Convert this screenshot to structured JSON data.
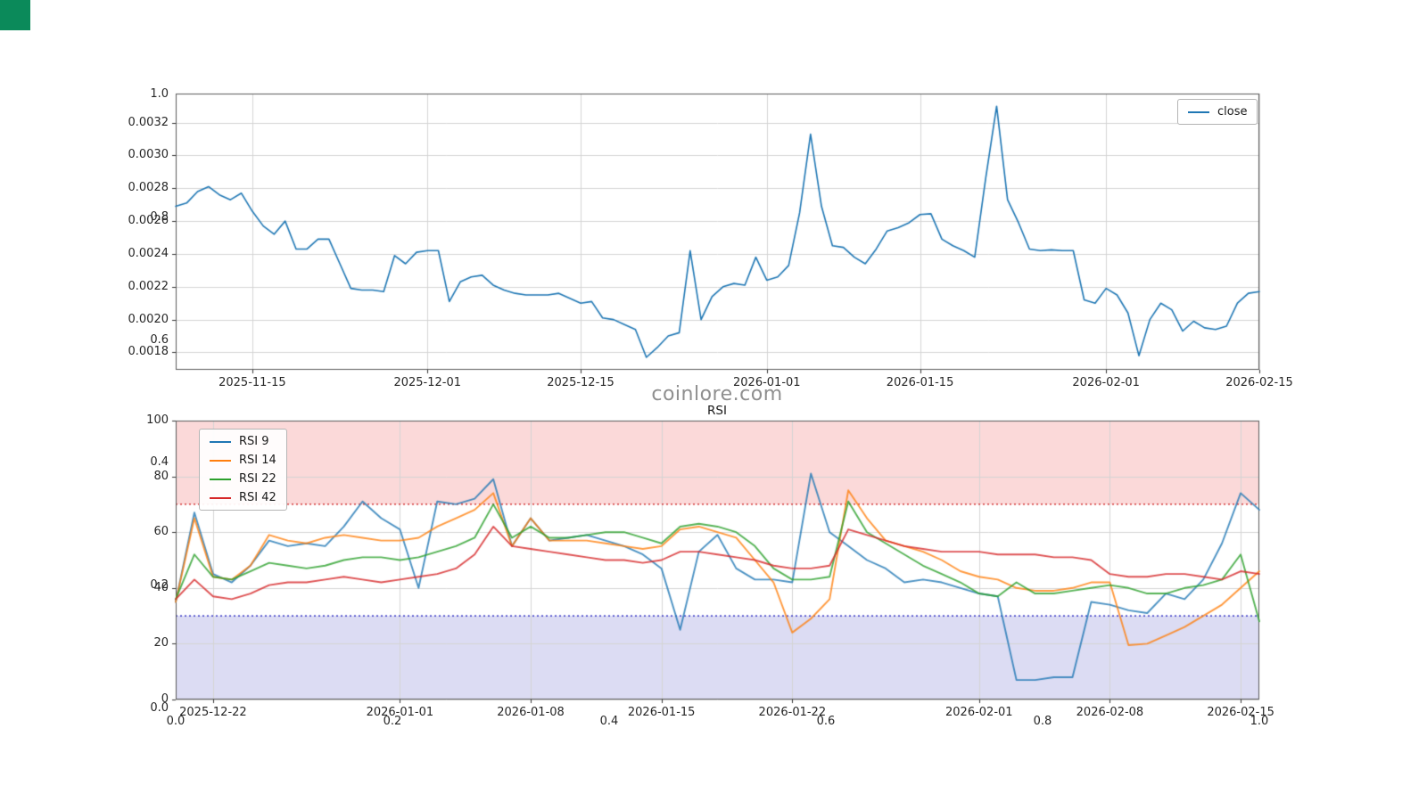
{
  "page": {
    "background": "#ffffff",
    "brand_square_color": "#0b8a5a"
  },
  "watermark": "coinlore.com",
  "overlay_axis": {
    "y_ticks": [
      {
        "label": "1.0",
        "pos": 1.0
      },
      {
        "label": "0.8",
        "pos": 0.8
      },
      {
        "label": "0.6",
        "pos": 0.6
      },
      {
        "label": "0.4",
        "pos": 0.4
      },
      {
        "label": "0.2",
        "pos": 0.2
      },
      {
        "label": "0.0",
        "pos": 0.0
      }
    ],
    "x_ticks": [
      {
        "label": "0.0",
        "pos": 0.0
      },
      {
        "label": "0.2",
        "pos": 0.2
      },
      {
        "label": "0.4",
        "pos": 0.4
      },
      {
        "label": "0.6",
        "pos": 0.6
      },
      {
        "label": "0.8",
        "pos": 0.8
      },
      {
        "label": "1.0",
        "pos": 1.0
      }
    ]
  },
  "chart_data": [
    {
      "type": "line",
      "name": "price",
      "title": "",
      "legend_position": "upper right",
      "grid": true,
      "ylim": [
        0.001694,
        0.003377
      ],
      "x_start": "2025-11-08",
      "x_end": "2026-02-15",
      "x_ticks": [
        {
          "label": "2025-11-15",
          "pos": 0.0707
        },
        {
          "label": "2025-12-01",
          "pos": 0.2323
        },
        {
          "label": "2025-12-15",
          "pos": 0.3737
        },
        {
          "label": "2026-01-01",
          "pos": 0.5455
        },
        {
          "label": "2026-01-15",
          "pos": 0.6869
        },
        {
          "label": "2026-02-01",
          "pos": 0.8586
        },
        {
          "label": "2026-02-15",
          "pos": 1.0
        }
      ],
      "y_ticks": [
        {
          "label": "0.0018",
          "value": 0.0018
        },
        {
          "label": "0.0020",
          "value": 0.002
        },
        {
          "label": "0.0022",
          "value": 0.0022
        },
        {
          "label": "0.0024",
          "value": 0.0024
        },
        {
          "label": "0.0026",
          "value": 0.0026
        },
        {
          "label": "0.0028",
          "value": 0.0028
        },
        {
          "label": "0.0030",
          "value": 0.003
        },
        {
          "label": "0.0032",
          "value": 0.0032
        }
      ],
      "series": [
        {
          "name": "close",
          "color": "#1f77b4",
          "values": [
            0.00269,
            0.00271,
            0.00278,
            0.00281,
            0.00276,
            0.00273,
            0.00277,
            0.00266,
            0.00257,
            0.00252,
            0.0026,
            0.00243,
            0.00243,
            0.00249,
            0.00249,
            0.00234,
            0.00219,
            0.00218,
            0.00218,
            0.00217,
            0.00239,
            0.00234,
            0.00241,
            0.00242,
            0.00242,
            0.00211,
            0.00223,
            0.00226,
            0.00227,
            0.00221,
            0.00218,
            0.00216,
            0.00215,
            0.00215,
            0.00215,
            0.00216,
            0.00213,
            0.0021,
            0.00211,
            0.00201,
            0.002,
            0.00197,
            0.00194,
            0.00177,
            0.00183,
            0.0019,
            0.00192,
            0.00242,
            0.002,
            0.00214,
            0.0022,
            0.00222,
            0.00221,
            0.00238,
            0.00224,
            0.00226,
            0.00233,
            0.00265,
            0.00313,
            0.00269,
            0.00245,
            0.00244,
            0.00238,
            0.00234,
            0.00243,
            0.00254,
            0.00256,
            0.00259,
            0.00264,
            0.002645,
            0.00249,
            0.00245,
            0.00242,
            0.00238,
            0.00286,
            0.0033,
            0.00273,
            0.00259,
            0.00243,
            0.00242,
            0.002425,
            0.00242,
            0.00242,
            0.00212,
            0.0021,
            0.00219,
            0.00215,
            0.00204,
            0.00178,
            0.002,
            0.0021,
            0.00206,
            0.00193,
            0.00199,
            0.00195,
            0.00194,
            0.00196,
            0.0021,
            0.00216,
            0.00217
          ]
        }
      ]
    },
    {
      "type": "line",
      "name": "rsi",
      "title": "RSI",
      "legend_position": "upper left",
      "grid": true,
      "ylim": [
        0,
        100
      ],
      "x_start": "2025-12-20",
      "x_end": "2026-02-16",
      "x_ticks": [
        {
          "label": "2025-12-22",
          "pos": 0.0345
        },
        {
          "label": "2026-01-01",
          "pos": 0.2069
        },
        {
          "label": "2026-01-08",
          "pos": 0.3276
        },
        {
          "label": "2026-01-15",
          "pos": 0.4483
        },
        {
          "label": "2026-01-22",
          "pos": 0.569
        },
        {
          "label": "2026-02-01",
          "pos": 0.7414
        },
        {
          "label": "2026-02-08",
          "pos": 0.8621
        },
        {
          "label": "2026-02-15",
          "pos": 0.9828
        }
      ],
      "y_ticks": [
        {
          "label": "0",
          "value": 0
        },
        {
          "label": "20",
          "value": 20
        },
        {
          "label": "40",
          "value": 40
        },
        {
          "label": "60",
          "value": 60
        },
        {
          "label": "80",
          "value": 80
        },
        {
          "label": "100",
          "value": 100
        }
      ],
      "bands": [
        {
          "from": 70,
          "to": 100,
          "color": "#fbd9d9",
          "meaning": "overbought"
        },
        {
          "from": 0,
          "to": 30,
          "color": "#dcdcf3",
          "meaning": "oversold"
        }
      ],
      "hlines": [
        {
          "y": 70,
          "color": "#cc1111",
          "style": "dotted"
        },
        {
          "y": 30,
          "color": "#1111bb",
          "style": "dotted"
        }
      ],
      "series": [
        {
          "name": "RSI 9",
          "color": "#1f77b4",
          "values": [
            35,
            67,
            45,
            42,
            48,
            57,
            55,
            56,
            55,
            62,
            71,
            65,
            61,
            40,
            71,
            70,
            72,
            79,
            55,
            65,
            57,
            58,
            59,
            57,
            55,
            52,
            47,
            25,
            53,
            59,
            47,
            43,
            43,
            42,
            81,
            60,
            55,
            50,
            47,
            42,
            43,
            42,
            40,
            38,
            37,
            7,
            7,
            8,
            8,
            35,
            34,
            32,
            31,
            38,
            36,
            43,
            56,
            74,
            68
          ]
        },
        {
          "name": "RSI 14",
          "color": "#ff7f0e",
          "values": [
            35,
            65,
            44,
            43,
            48,
            59,
            57,
            56,
            58,
            59,
            58,
            57,
            57,
            58,
            62,
            65,
            68,
            74,
            55,
            65,
            57,
            57,
            57,
            56,
            55,
            54,
            55,
            61,
            62,
            60,
            58,
            50,
            42,
            24,
            29,
            36,
            75,
            65,
            57,
            55,
            53,
            50,
            46,
            44,
            43,
            40,
            39,
            39,
            40,
            42,
            42,
            19.5,
            20,
            23,
            26,
            30,
            34,
            40,
            46
          ]
        },
        {
          "name": "RSI 22",
          "color": "#2ca02c",
          "values": [
            36,
            52,
            44,
            43,
            46,
            49,
            48,
            47,
            48,
            50,
            51,
            51,
            50,
            51,
            53,
            55,
            58,
            70,
            58,
            62,
            58,
            58,
            59,
            60,
            60,
            58,
            56,
            62,
            63,
            62,
            60,
            55,
            47,
            43,
            43,
            44,
            71,
            60,
            56,
            52,
            48,
            45,
            42,
            38,
            37,
            42,
            38,
            38,
            39,
            40,
            41,
            40,
            38,
            38,
            40,
            41,
            43,
            52,
            28
          ]
        },
        {
          "name": "RSI 42",
          "color": "#d62728",
          "values": [
            36,
            43,
            37,
            36,
            38,
            41,
            42,
            42,
            43,
            44,
            43,
            42,
            43,
            44,
            45,
            47,
            52,
            62,
            55,
            54,
            53,
            52,
            51,
            50,
            50,
            49,
            50,
            53,
            53,
            52,
            51,
            50,
            48,
            47,
            47,
            48,
            61,
            59,
            57,
            55,
            54,
            53,
            53,
            53,
            52,
            52,
            52,
            51,
            51,
            50,
            45,
            44,
            44,
            45,
            45,
            44,
            43,
            46,
            45
          ]
        }
      ]
    }
  ]
}
